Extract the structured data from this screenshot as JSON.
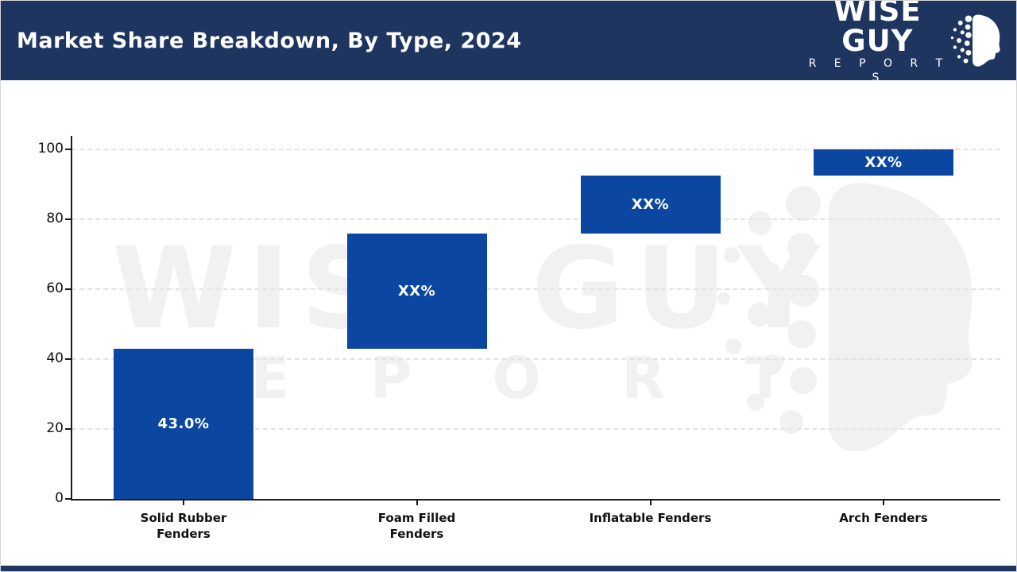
{
  "header": {
    "title": "Market Share Breakdown, By Type, 2024",
    "logo": {
      "line1": "WISE GUY",
      "line2": "R E P O R T S"
    }
  },
  "watermark": {
    "line1": "WISE GUY",
    "line2": "R E P O R T S"
  },
  "chart_data": {
    "type": "bar",
    "subtype": "waterfall",
    "title": "Market Share Breakdown, By Type, 2024",
    "categories": [
      "Solid Rubber Fenders",
      "Foam Filled Fenders",
      "Inflatable Fenders",
      "Arch Fenders"
    ],
    "category_label_lines": [
      [
        "Solid Rubber",
        "Fenders"
      ],
      [
        "Foam Filled",
        "Fenders"
      ],
      [
        "Inflatable Fenders"
      ],
      [
        "Arch Fenders"
      ]
    ],
    "bars": [
      {
        "category": "Solid Rubber Fenders",
        "start": 0,
        "end": 43.0,
        "value": 43.0,
        "label": "43.0%"
      },
      {
        "category": "Foam Filled Fenders",
        "start": 43.0,
        "end": 76.0,
        "value": 33.0,
        "label": "XX%"
      },
      {
        "category": "Inflatable Fenders",
        "start": 76.0,
        "end": 92.5,
        "value": 16.5,
        "label": "XX%"
      },
      {
        "category": "Arch Fenders",
        "start": 92.5,
        "end": 100.0,
        "value": 7.5,
        "label": "XX%"
      }
    ],
    "yticks": [
      0,
      20,
      40,
      60,
      80,
      100
    ],
    "ylim": [
      0,
      104
    ],
    "xlabel": "",
    "ylabel": "",
    "grid": "horizontal dashed",
    "legend": "none",
    "bar_color": "#0b47a0",
    "bar_label_color": "#ffffff",
    "header_color": "#1e3560",
    "axis_color": "#1a1a1a"
  }
}
